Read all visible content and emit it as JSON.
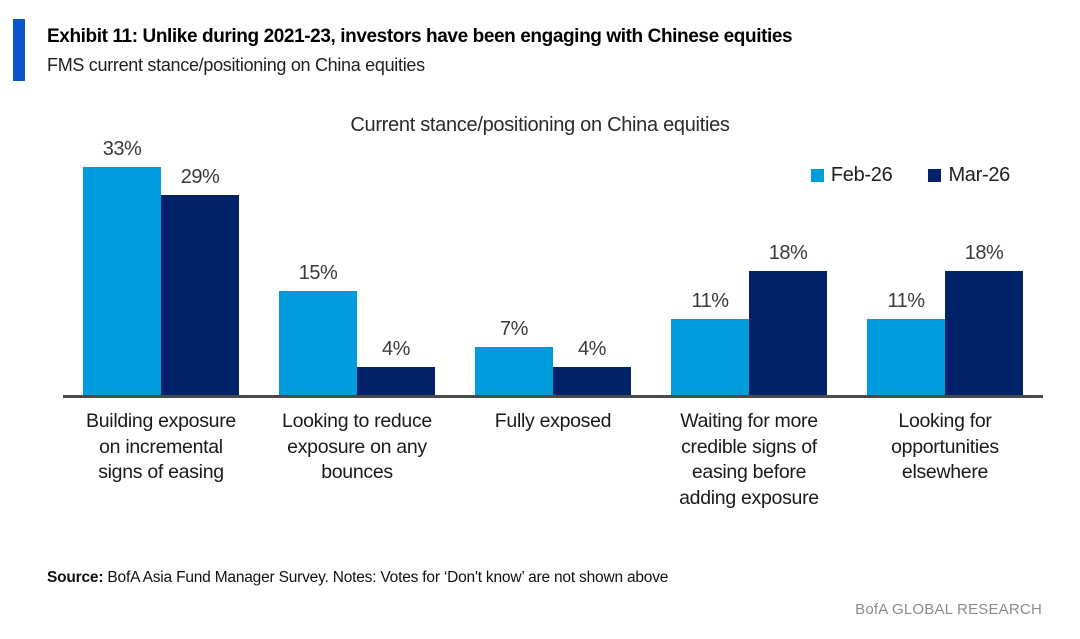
{
  "header": {
    "exhibit_title": "Exhibit 11: Unlike during 2021-23, investors have been engaging with Chinese equities",
    "subtitle": "FMS current stance/positioning on China equities"
  },
  "chart_data": {
    "type": "bar",
    "title": "Current stance/positioning on China equities",
    "categories": [
      "Building exposure on incremental signs of easing",
      "Looking to reduce exposure on any bounces",
      "Fully exposed",
      "Waiting for more credible signs of easing before adding exposure",
      "Looking for opportunities elsewhere"
    ],
    "series": [
      {
        "name": "Feb-26",
        "color": "#009CDE",
        "values": [
          33,
          15,
          7,
          11,
          11
        ]
      },
      {
        "name": "Mar-26",
        "color": "#012169",
        "values": [
          29,
          4,
          4,
          18,
          18
        ]
      }
    ],
    "value_suffix": "%",
    "xlabel": "",
    "ylabel": "",
    "ylim": [
      0,
      35
    ],
    "grid": false,
    "data_labels": true,
    "legend_position": "top-right"
  },
  "footer": {
    "source_label": "Source:",
    "source_text": " BofA Asia Fund Manager Survey. Notes: Votes for ‘Don't know’ are not shown above",
    "brand": "BofA GLOBAL RESEARCH"
  },
  "colors": {
    "accent_bar": "#0D55CF",
    "feb_series": "#009CDE",
    "mar_series": "#012169",
    "axis_line": "#4a4a4a",
    "brand_text": "#8c8c8c"
  }
}
